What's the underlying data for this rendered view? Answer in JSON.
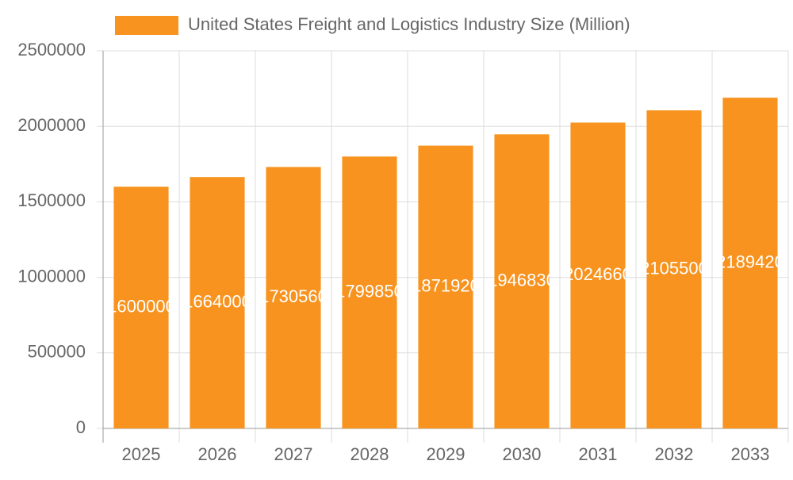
{
  "chart_data": {
    "type": "bar",
    "legend": "United States Freight and Logistics Industry Size (Million)",
    "categories": [
      "2025",
      "2026",
      "2027",
      "2028",
      "2029",
      "2030",
      "2031",
      "2032",
      "2033"
    ],
    "values": [
      1600000,
      1664000,
      1730560,
      1799850,
      1871920,
      1946830,
      2024660,
      2105500,
      2189420
    ],
    "color": "#f7931e",
    "ylim": [
      0,
      2500000
    ],
    "yticks": [
      0,
      500000,
      1000000,
      1500000,
      2000000,
      2500000
    ],
    "grid": true,
    "legend_position": "top"
  }
}
